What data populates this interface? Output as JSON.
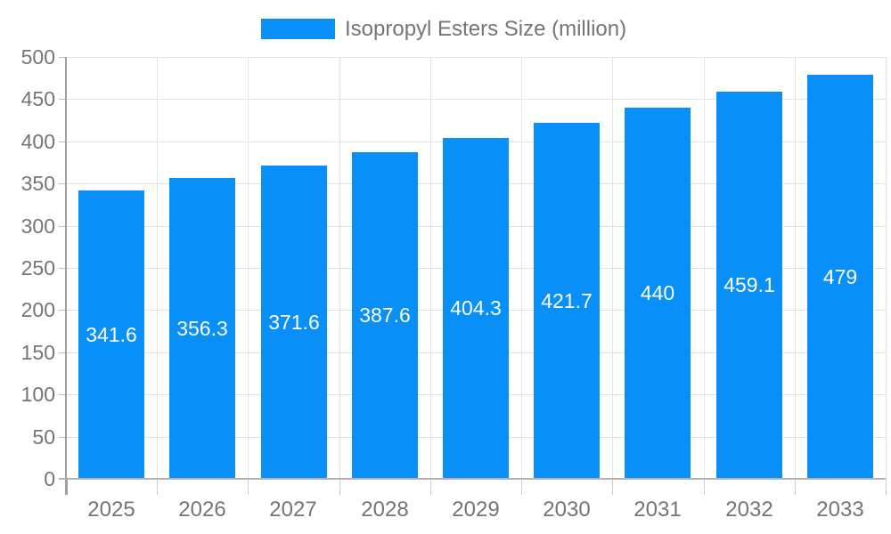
{
  "chart_data": {
    "type": "bar",
    "title": "",
    "categories": [
      "2025",
      "2026",
      "2027",
      "2028",
      "2029",
      "2030",
      "2031",
      "2032",
      "2033"
    ],
    "series": [
      {
        "name": "Isopropyl Esters Size (million)",
        "values": [
          341.6,
          356.3,
          371.6,
          387.6,
          404.3,
          421.7,
          440,
          459.1,
          479
        ]
      }
    ],
    "xlabel": "",
    "ylabel": "",
    "ylim": [
      0,
      500
    ],
    "ytick_step": 50,
    "yticks": [
      0,
      50,
      100,
      150,
      200,
      250,
      300,
      350,
      400,
      450,
      500
    ],
    "grid": "horizontal and vertical category boundaries",
    "legend_position": "top-center",
    "value_labels": "white, centered inside bars"
  },
  "colors": {
    "bar": "#0890f8",
    "value_label": "#ffffff",
    "axis_label": "#757575",
    "legend_text": "#757575",
    "gridline": "#e3e3e3",
    "axis_line": "#a0a0a0",
    "background": "#ffffff"
  }
}
